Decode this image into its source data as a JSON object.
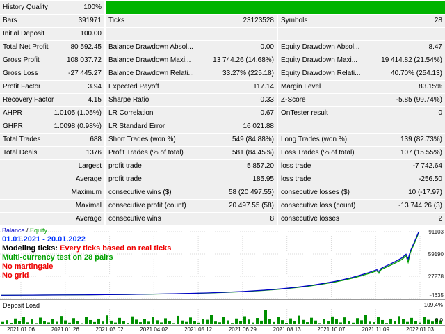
{
  "colors": {
    "quality_green": "#00b400",
    "balance_blue": "#0000c8",
    "equity_green": "#00a000",
    "deposit_bar_green": "#008f00",
    "grid": "#d9d9d9",
    "cell_bg": "#efefef"
  },
  "stats_table": {
    "quality_percent": "100%",
    "rows": [
      {
        "quality_bar": true,
        "cells": [
          {
            "label": "History Quality",
            "value": "100%"
          }
        ]
      },
      {
        "cells": [
          {
            "label": "Bars",
            "value": "391971"
          },
          {
            "label": "Ticks",
            "value": "23123528"
          },
          {
            "label": "Symbols",
            "value": "28"
          }
        ]
      },
      {
        "cells": [
          {
            "label": "Initial Deposit",
            "value": "100.00"
          },
          {
            "label": "",
            "value": ""
          },
          {
            "label": "",
            "value": ""
          }
        ]
      },
      {
        "cells": [
          {
            "label": "Total Net Profit",
            "value": "80 592.45"
          },
          {
            "label": "Balance Drawdown Absol...",
            "value": "0.00"
          },
          {
            "label": "Equity Drawdown Absol...",
            "value": "8.47"
          }
        ]
      },
      {
        "cells": [
          {
            "label": "Gross Profit",
            "value": "108 037.72"
          },
          {
            "label": "Balance Drawdown Maxi...",
            "value": "13 744.26 (14.68%)"
          },
          {
            "label": "Equity Drawdown Maxi...",
            "value": "19 414.82 (21.54%)"
          }
        ]
      },
      {
        "cells": [
          {
            "label": "Gross Loss",
            "value": "-27 445.27"
          },
          {
            "label": "Balance Drawdown Relati...",
            "value": "33.27% (225.18)"
          },
          {
            "label": "Equity Drawdown Relati...",
            "value": "40.70% (254.13)"
          }
        ]
      },
      {
        "cells": [
          {
            "label": "Profit Factor",
            "value": "3.94"
          },
          {
            "label": "Expected Payoff",
            "value": "117.14"
          },
          {
            "label": "Margin Level",
            "value": "83.15%"
          }
        ]
      },
      {
        "cells": [
          {
            "label": "Recovery Factor",
            "value": "4.15"
          },
          {
            "label": "Sharpe Ratio",
            "value": "0.33"
          },
          {
            "label": "Z-Score",
            "value": "-5.85 (99.74%)"
          }
        ]
      },
      {
        "cells": [
          {
            "label": "AHPR",
            "value": "1.0105 (1.05%)"
          },
          {
            "label": "LR Correlation",
            "value": "0.67"
          },
          {
            "label": "OnTester result",
            "value": "0"
          }
        ]
      },
      {
        "cells": [
          {
            "label": "GHPR",
            "value": "1.0098 (0.98%)"
          },
          {
            "label": "LR Standard Error",
            "value": "16 021.88"
          },
          {
            "label": "",
            "value": ""
          }
        ]
      },
      {
        "cells": [
          {
            "label": "Total Trades",
            "value": "688"
          },
          {
            "label": "Short Trades (won %)",
            "value": "549 (84.88%)"
          },
          {
            "label": "Long Trades (won %)",
            "value": "139 (82.73%)"
          }
        ]
      },
      {
        "cells": [
          {
            "label": "Total Deals",
            "value": "1376"
          },
          {
            "label": "Profit Trades (% of total)",
            "value": "581 (84.45%)"
          },
          {
            "label": "Loss Trades (% of total)",
            "value": "107 (15.55%)"
          }
        ]
      },
      {
        "cells": [
          {
            "label": "",
            "value": "Largest"
          },
          {
            "label": "profit trade",
            "value": "5 857.20"
          },
          {
            "label": "loss trade",
            "value": "-7 742.64"
          }
        ]
      },
      {
        "cells": [
          {
            "label": "",
            "value": "Average"
          },
          {
            "label": "profit trade",
            "value": "185.95"
          },
          {
            "label": "loss trade",
            "value": "-256.50"
          }
        ]
      },
      {
        "cells": [
          {
            "label": "",
            "value": "Maximum"
          },
          {
            "label": "consecutive wins ($)",
            "value": "58 (20 497.55)"
          },
          {
            "label": "consecutive losses ($)",
            "value": "10 (-17.97)"
          }
        ]
      },
      {
        "cells": [
          {
            "label": "",
            "value": "Maximal"
          },
          {
            "label": "consecutive profit (count)",
            "value": "20 497.55 (58)"
          },
          {
            "label": "consecutive loss (count)",
            "value": "-13 744.26 (3)"
          }
        ]
      },
      {
        "cells": [
          {
            "label": "",
            "value": "Average"
          },
          {
            "label": "consecutive wins",
            "value": "8"
          },
          {
            "label": "consecutive losses",
            "value": "2"
          }
        ]
      }
    ]
  },
  "chart": {
    "legend": {
      "balance": "Balance",
      "separator": " / ",
      "equity": "Equity"
    },
    "annotations": [
      [
        {
          "text": "01.01.2021 - 20.01.2022",
          "color": "#0033ff"
        }
      ],
      [
        {
          "text": "Modeling ticks: ",
          "color": "#000000"
        },
        {
          "text": "Every ticks based on real ticks",
          "color": "#ee0000"
        }
      ],
      [
        {
          "text": "Multi-currency test on 28 pairs",
          "color": "#00a000"
        }
      ],
      [
        {
          "text": "No martingale",
          "color": "#ee0000"
        }
      ],
      [
        {
          "text": "No grid",
          "color": "#ee0000"
        }
      ]
    ]
  },
  "chart_data": {
    "type": "line",
    "title": "Balance / Equity",
    "x_range": [
      "01.01.2021",
      "20.01.2022"
    ],
    "y_max": 91103,
    "y_min": -4635,
    "y_ticks": [
      91103,
      59190,
      27278,
      -4635
    ],
    "series": [
      {
        "name": "Balance",
        "color": "#0000c8",
        "points": [
          [
            0,
            100
          ],
          [
            0.05,
            200
          ],
          [
            0.1,
            350
          ],
          [
            0.15,
            520
          ],
          [
            0.2,
            700
          ],
          [
            0.25,
            950
          ],
          [
            0.3,
            1250
          ],
          [
            0.35,
            1600
          ],
          [
            0.4,
            2100
          ],
          [
            0.45,
            2700
          ],
          [
            0.5,
            3500
          ],
          [
            0.54,
            4400
          ],
          [
            0.58,
            5500
          ],
          [
            0.62,
            6900
          ],
          [
            0.65,
            8200
          ],
          [
            0.68,
            9800
          ],
          [
            0.71,
            11700
          ],
          [
            0.74,
            14000
          ],
          [
            0.77,
            16800
          ],
          [
            0.8,
            20000
          ],
          [
            0.82,
            22600
          ],
          [
            0.84,
            25500
          ],
          [
            0.86,
            28800
          ],
          [
            0.88,
            32500
          ],
          [
            0.9,
            36700
          ],
          [
            0.905,
            34200
          ],
          [
            0.91,
            38500
          ],
          [
            0.92,
            41500
          ],
          [
            0.93,
            44200
          ],
          [
            0.94,
            47100
          ],
          [
            0.95,
            50300
          ],
          [
            0.96,
            53700
          ],
          [
            0.97,
            59000
          ],
          [
            0.975,
            52000
          ],
          [
            0.98,
            63000
          ],
          [
            0.985,
            70000
          ],
          [
            0.99,
            76500
          ],
          [
            0.995,
            83500
          ],
          [
            1,
            90500
          ]
        ]
      },
      {
        "name": "Equity",
        "color": "#00a000",
        "points": [
          [
            0,
            100
          ],
          [
            0.05,
            190
          ],
          [
            0.1,
            330
          ],
          [
            0.15,
            500
          ],
          [
            0.2,
            670
          ],
          [
            0.25,
            900
          ],
          [
            0.3,
            1190
          ],
          [
            0.35,
            1530
          ],
          [
            0.4,
            2000
          ],
          [
            0.45,
            2580
          ],
          [
            0.5,
            3350
          ],
          [
            0.54,
            4200
          ],
          [
            0.58,
            5250
          ],
          [
            0.62,
            6550
          ],
          [
            0.65,
            7800
          ],
          [
            0.68,
            9300
          ],
          [
            0.71,
            11100
          ],
          [
            0.74,
            13300
          ],
          [
            0.77,
            16000
          ],
          [
            0.8,
            19000
          ],
          [
            0.82,
            21500
          ],
          [
            0.84,
            24300
          ],
          [
            0.86,
            27400
          ],
          [
            0.88,
            31000
          ],
          [
            0.9,
            35000
          ],
          [
            0.905,
            31500
          ],
          [
            0.91,
            36600
          ],
          [
            0.92,
            39500
          ],
          [
            0.93,
            42200
          ],
          [
            0.94,
            45000
          ],
          [
            0.95,
            48000
          ],
          [
            0.96,
            51200
          ],
          [
            0.97,
            56500
          ],
          [
            0.975,
            47000
          ],
          [
            0.98,
            60500
          ],
          [
            0.985,
            67500
          ],
          [
            0.99,
            74000
          ],
          [
            0.995,
            81500
          ],
          [
            1,
            89200
          ]
        ]
      }
    ]
  },
  "deposit_load": {
    "label": "Deposit Load",
    "max_label": "109.4%",
    "min_label": "0.0",
    "max_value": 109.4,
    "bars": [
      18,
      32,
      11,
      45,
      22,
      60,
      15,
      38,
      9,
      52,
      27,
      14,
      41,
      19,
      65,
      30,
      12,
      48,
      24,
      8,
      55,
      33,
      17,
      44,
      21,
      70,
      28,
      13,
      50,
      25,
      10,
      62,
      36,
      16,
      42,
      20,
      58,
      31,
      14,
      47,
      23,
      9,
      66,
      29,
      18,
      53,
      26,
      12,
      40,
      35,
      72,
      21,
      15,
      57,
      30,
      10,
      45,
      24,
      63,
      37,
      13,
      49,
      28,
      109.4,
      41,
      17,
      59,
      32,
      11,
      46,
      25,
      68,
      34,
      16,
      51,
      29,
      9,
      43,
      22,
      61,
      38,
      14,
      54,
      27,
      12,
      48,
      31,
      75,
      20,
      16,
      56,
      33,
      10,
      44,
      23,
      64,
      39,
      18,
      50,
      26,
      13,
      58,
      35,
      21,
      46,
      30
    ]
  },
  "date_axis": {
    "labels": [
      "2021.01.06",
      "2021.01.26",
      "2021.03.02",
      "2021.04.02",
      "2021.05.12",
      "2021.06.29",
      "2021.08.13",
      "2021.10.07",
      "2021.11.09",
      "2022.01.03"
    ]
  }
}
